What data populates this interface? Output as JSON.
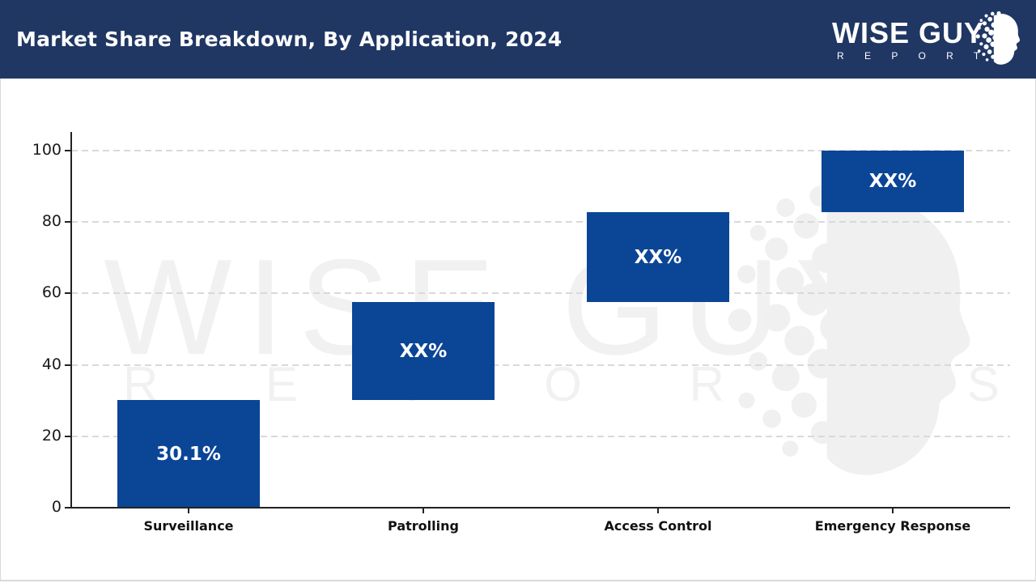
{
  "header": {
    "title": "Market Share Breakdown, By Application, 2024",
    "logo": {
      "line1": "WISE GUY",
      "line2": "R E P O R T S"
    }
  },
  "watermark": {
    "line1": "WISE GUY",
    "line2": "R E P O R T S"
  },
  "colors": {
    "header_bg": "#203764",
    "bar": "#0b4596",
    "grid": "#d9d9d9",
    "watermark": "#f1f1f1",
    "bar_label": "#ffffff"
  },
  "chart_data": {
    "type": "bar",
    "subtype": "waterfall-floating-bars",
    "title": "Market Share Breakdown, By Application, 2024",
    "xlabel": "",
    "ylabel": "",
    "categories": [
      "Surveillance",
      "Patrolling",
      "Access Control",
      "Emergency Response"
    ],
    "segments": [
      {
        "category": "Surveillance",
        "start": 0,
        "end": 30.1,
        "label": "30.1%"
      },
      {
        "category": "Patrolling",
        "start": 30.1,
        "end": 57.6,
        "label": "XX%"
      },
      {
        "category": "Access Control",
        "start": 57.6,
        "end": 82.7,
        "label": "XX%"
      },
      {
        "category": "Emergency Response",
        "start": 82.7,
        "end": 100,
        "label": "XX%"
      }
    ],
    "yticks": [
      0,
      20,
      40,
      60,
      80,
      100
    ],
    "ylim": [
      0,
      105
    ],
    "grid": "horizontal-dashed",
    "legend": "none"
  }
}
